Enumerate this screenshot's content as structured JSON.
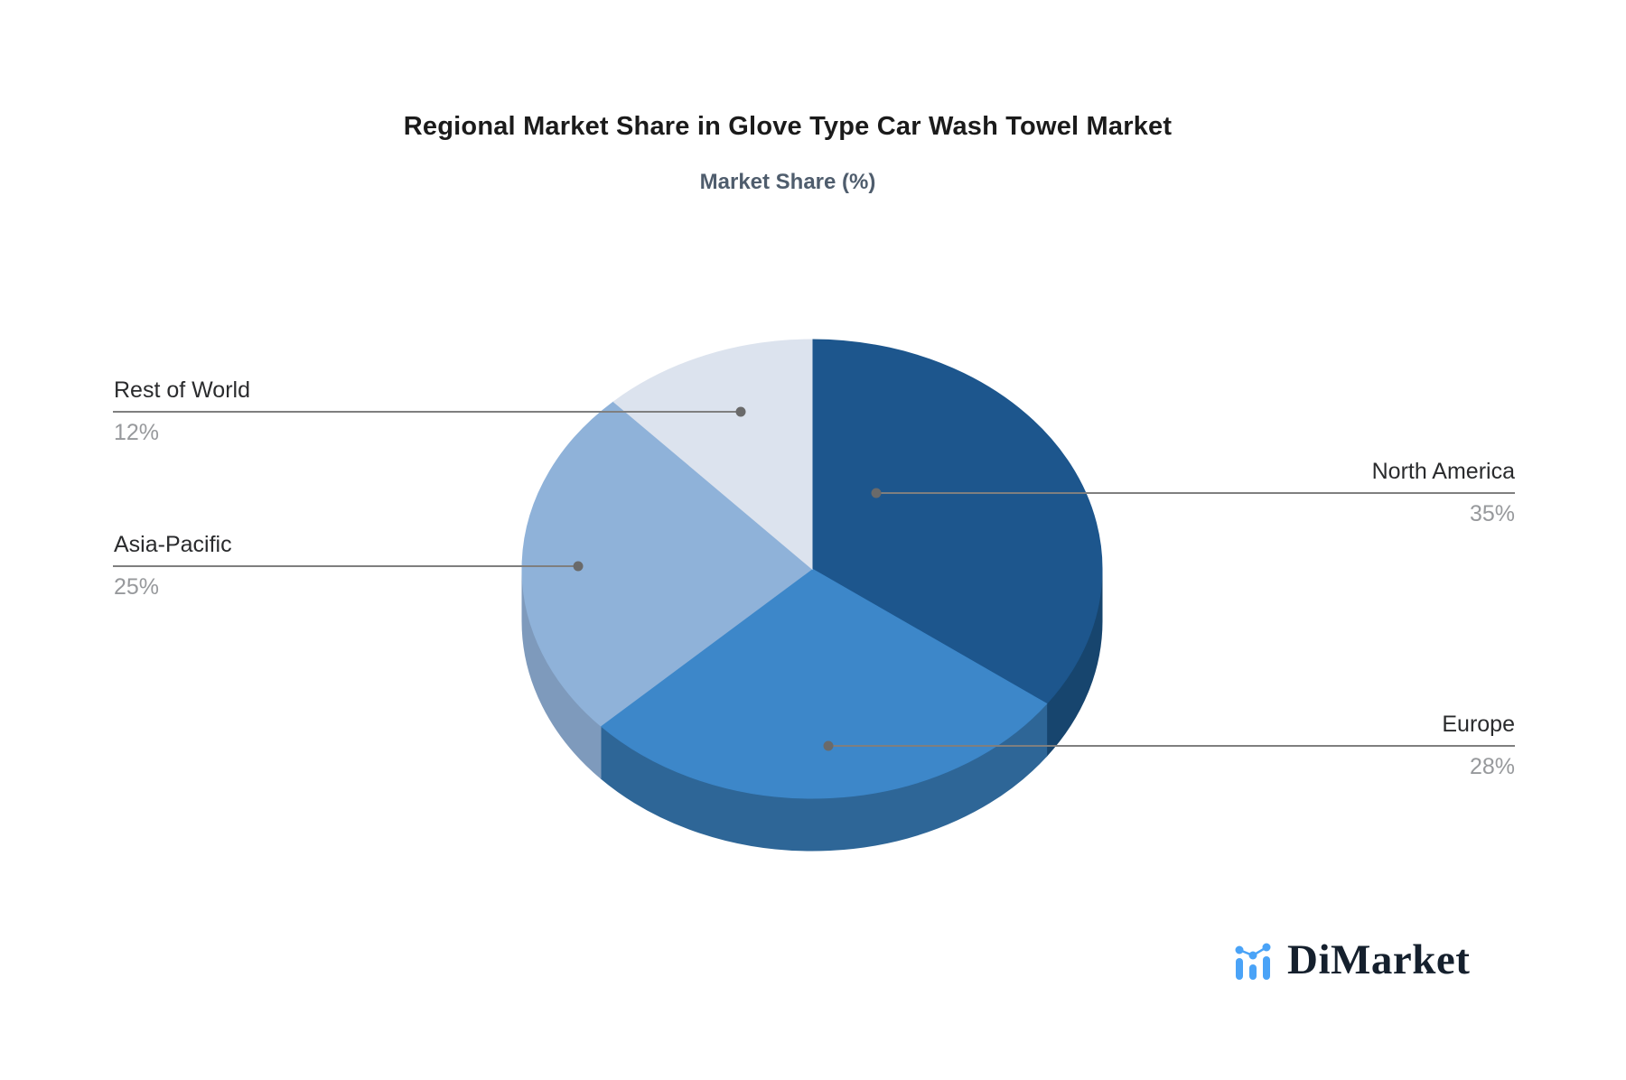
{
  "title": "Regional Market Share in Glove Type Car Wash Towel Market",
  "subtitle": "Market Share (%)",
  "chart_data": {
    "type": "pie",
    "style": "3d",
    "start_angle_deg": 0,
    "clockwise": true,
    "legend_position": "callout-labels",
    "title": "Regional Market Share in Glove Type Car Wash Towel Market",
    "subtitle": "Market Share (%)",
    "series": [
      {
        "label": "North America",
        "value": 35,
        "display": "35%",
        "color": "#1d568d",
        "side_color": "#17456e",
        "label_side": "right"
      },
      {
        "label": "Europe",
        "value": 28,
        "display": "28%",
        "color": "#3d87c9",
        "side_color": "#2e6697",
        "label_side": "right"
      },
      {
        "label": "Asia-Pacific",
        "value": 25,
        "display": "25%",
        "color": "#8fb2d9",
        "side_color": "#7e9abc",
        "label_side": "left"
      },
      {
        "label": "Rest of World",
        "value": 12,
        "display": "12%",
        "color": "#dce3ee",
        "side_color": "#c3cede",
        "label_side": "left"
      }
    ]
  },
  "colors": {
    "background": "#ffffff",
    "title_text": "#1b1b1b",
    "subtitle_text": "#4f5d6d",
    "label_text": "#2a2b2d",
    "pct_text": "#97999c",
    "leader_line": "#7f7f7f",
    "leader_dot": "#6a6a6a"
  },
  "branding": {
    "logo_text": "DiMarket",
    "logo_icon": "bar-line-chart-icon",
    "logo_icon_color": "#4aa3f7",
    "logo_text_color": "#15202d"
  }
}
